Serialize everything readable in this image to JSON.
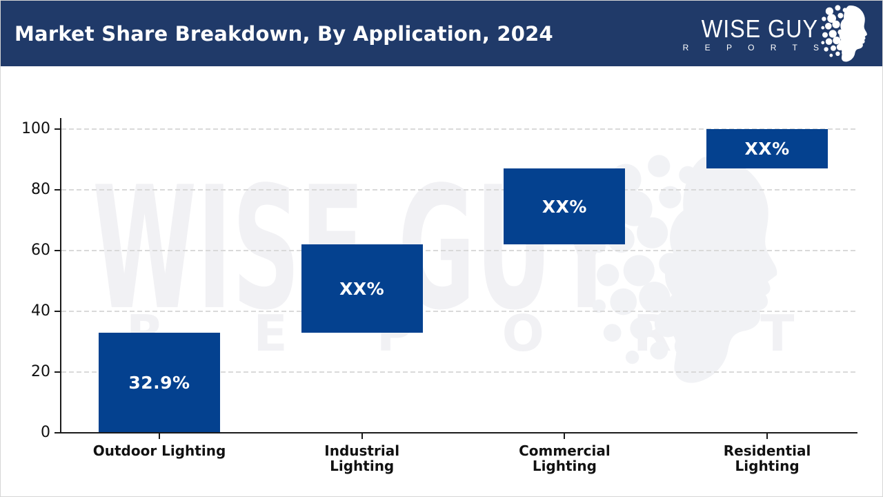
{
  "header": {
    "title": "Market Share Breakdown, By Application, 2024",
    "bg_color": "#203a69",
    "logo": {
      "name": "WISE GUY",
      "sub": "R E P O R T S",
      "icon": "dot-face-profile-icon"
    }
  },
  "watermark": {
    "line1": "WISE GUY",
    "line2": "R E P O R T S",
    "icon": "dot-face-profile-icon"
  },
  "chart_data": {
    "type": "bar",
    "subtype": "waterfall",
    "title": "Market Share Breakdown, By Application, 2024",
    "categories": [
      "Outdoor Lighting",
      "Industrial Lighting",
      "Commercial Lighting",
      "Residential Lighting"
    ],
    "category_lines": [
      [
        "Outdoor Lighting"
      ],
      [
        "Industrial",
        "Lighting"
      ],
      [
        "Commercial",
        "Lighting"
      ],
      [
        "Residential",
        "Lighting"
      ]
    ],
    "segments": [
      {
        "category": "Outdoor Lighting",
        "start": 0,
        "end": 32.9,
        "label": "32.9%"
      },
      {
        "category": "Industrial Lighting",
        "start": 32.9,
        "end": 62,
        "label": "XX%"
      },
      {
        "category": "Commercial Lighting",
        "start": 62,
        "end": 87,
        "label": "XX%"
      },
      {
        "category": "Residential Lighting",
        "start": 87,
        "end": 100,
        "label": "XX%"
      }
    ],
    "ylim": [
      0,
      100
    ],
    "y_ticks": [
      0,
      20,
      40,
      60,
      80,
      100
    ],
    "grid": "horizontal-dashed",
    "legend": "none",
    "bar_color": "#04418f",
    "bar_label_color": "#ffffff",
    "axis_color": "#1a1a1a",
    "grid_color": "#d9d9d9"
  }
}
